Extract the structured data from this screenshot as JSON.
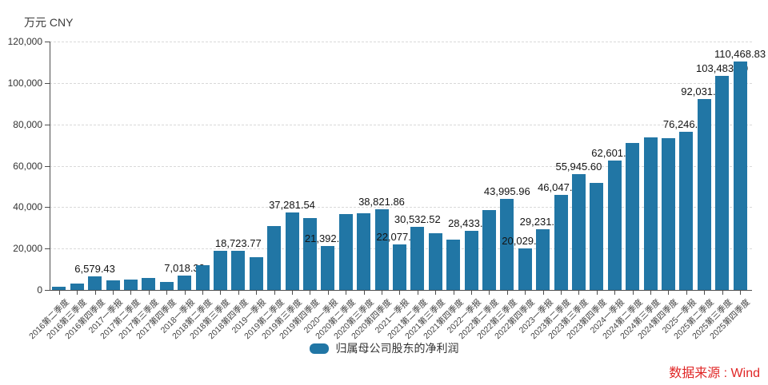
{
  "header": {
    "unit_label": "万元 CNY"
  },
  "legend": {
    "label": "归属母公司股东的净利润"
  },
  "source": {
    "text": "数据来源 : Wind"
  },
  "chart_data": {
    "type": "bar",
    "title": "",
    "xlabel": "",
    "ylabel": "万元 CNY",
    "bar_color": "#2176a5",
    "grid": true,
    "legend_position": "bottom-center",
    "ylim": [
      0,
      120000
    ],
    "yticks": [
      0,
      20000,
      40000,
      60000,
      80000,
      100000,
      120000
    ],
    "series_name": "归属母公司股东的净利润",
    "categories": [
      "2016第二季度",
      "2016第三季度",
      "2016第四季度",
      "2017一季报",
      "2017第二季度",
      "2017第三季度",
      "2017第四季度",
      "2018一季报",
      "2018第二季度",
      "2018第三季度",
      "2018第四季度",
      "2019一季报",
      "2019第二季度",
      "2019第三季度",
      "2019第四季度",
      "2020一季报",
      "2020第二季度",
      "2020第三季度",
      "2020第四季度",
      "2021一季报",
      "2021第二季度",
      "2021第三季度",
      "2021第四季度",
      "2022一季报",
      "2022第二季度",
      "2022第三季度",
      "2022第四季度",
      "2023一季报",
      "2023第二季度",
      "2023第三季度",
      "2023第四季度",
      "2024一季报",
      "2024第二季度",
      "2024第三季度",
      "2024第四季度",
      "2025一季报",
      "2025第二季度",
      "2025第三季度",
      "2025第四季度"
    ],
    "values": [
      1400,
      3100,
      6579.43,
      4750,
      5150,
      5650,
      3850,
      7018.33,
      12150,
      18950,
      18723.77,
      15870,
      30950,
      37281.54,
      34900,
      21392.34,
      36700,
      36950,
      38821.86,
      22077.65,
      30532.52,
      27400,
      24500,
      28433.85,
      38400,
      43995.96,
      20029.28,
      29231.31,
      46047.64,
      55945.6,
      51600,
      62601.83,
      70900,
      73600,
      73400,
      76246.54,
      92031.55,
      103483.7,
      110468.83
    ],
    "show_label": [
      false,
      false,
      true,
      false,
      false,
      false,
      false,
      true,
      false,
      false,
      true,
      false,
      false,
      true,
      false,
      true,
      false,
      false,
      true,
      true,
      true,
      false,
      false,
      true,
      false,
      true,
      true,
      true,
      true,
      true,
      false,
      true,
      false,
      false,
      false,
      true,
      true,
      true,
      true
    ],
    "visible_value_labels": [
      "6,579.43",
      "7,018.33",
      "18,723.77",
      "37,281.54",
      "21,392.34",
      "38,821.86",
      "22,077.65",
      "30,532.52",
      "28,433.85",
      "43,995.96",
      "20,029.28",
      "29,231.31",
      "46,047.64",
      "55,945.60",
      "62,601.83",
      "76,246.54",
      "92,031.55",
      "103,483.70",
      "110,468.83"
    ]
  }
}
